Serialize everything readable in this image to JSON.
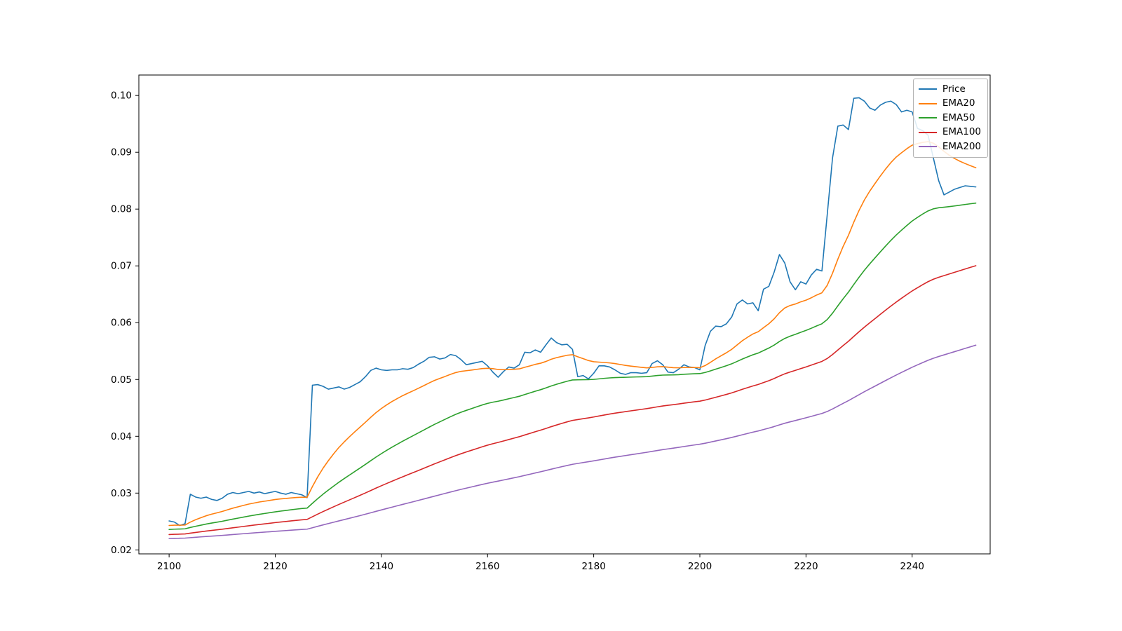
{
  "chart_data": {
    "type": "line",
    "title": "",
    "xlabel": "",
    "ylabel": "",
    "grid": false,
    "legend_position": "upper right",
    "x_start": 2100,
    "x_step": 1,
    "xlim": [
      2094.3,
      2254.7
    ],
    "ylim": [
      0.0193,
      0.1036
    ],
    "x_ticks": [
      2100,
      2120,
      2140,
      2160,
      2180,
      2200,
      2220,
      2240
    ],
    "x_tick_labels": [
      "2100",
      "2120",
      "2140",
      "2160",
      "2180",
      "2200",
      "2220",
      "2240"
    ],
    "y_ticks": [
      0.02,
      0.03,
      0.04,
      0.05,
      0.06,
      0.07,
      0.08,
      0.09,
      0.1
    ],
    "y_tick_labels": [
      "0.02",
      "0.03",
      "0.04",
      "0.05",
      "0.06",
      "0.07",
      "0.08",
      "0.09",
      "0.10"
    ],
    "series": [
      {
        "name": "Price",
        "color": "#1f77b4",
        "kind": "raw",
        "values": [
          0.0251,
          0.0249,
          0.0243,
          0.0246,
          0.0298,
          0.0293,
          0.0291,
          0.0293,
          0.0289,
          0.0287,
          0.0291,
          0.0298,
          0.0301,
          0.0299,
          0.0301,
          0.0303,
          0.03,
          0.0302,
          0.0299,
          0.0301,
          0.0303,
          0.03,
          0.0298,
          0.0301,
          0.0299,
          0.0297,
          0.0292,
          0.049,
          0.0491,
          0.0488,
          0.0483,
          0.0485,
          0.0487,
          0.0483,
          0.0486,
          0.0491,
          0.0496,
          0.0505,
          0.0516,
          0.052,
          0.0517,
          0.0516,
          0.0517,
          0.0517,
          0.0519,
          0.0518,
          0.0521,
          0.0527,
          0.0532,
          0.0539,
          0.054,
          0.0536,
          0.0538,
          0.0544,
          0.0542,
          0.0535,
          0.0526,
          0.0528,
          0.053,
          0.0532,
          0.0524,
          0.0513,
          0.0504,
          0.0514,
          0.0522,
          0.052,
          0.0526,
          0.0548,
          0.0547,
          0.0552,
          0.0548,
          0.0561,
          0.0573,
          0.0565,
          0.0561,
          0.0562,
          0.0553,
          0.0505,
          0.0507,
          0.0501,
          0.0511,
          0.0524,
          0.0524,
          0.0522,
          0.0517,
          0.0511,
          0.0509,
          0.0512,
          0.0512,
          0.0511,
          0.0512,
          0.0528,
          0.0533,
          0.0526,
          0.0513,
          0.0512,
          0.0518,
          0.0526,
          0.0522,
          0.0521,
          0.0517,
          0.056,
          0.0585,
          0.0594,
          0.0593,
          0.0598,
          0.061,
          0.0633,
          0.064,
          0.0633,
          0.0635,
          0.0621,
          0.0659,
          0.0664,
          0.0689,
          0.072,
          0.0705,
          0.0672,
          0.0658,
          0.0672,
          0.0668,
          0.0684,
          0.0694,
          0.0691,
          0.079,
          0.089,
          0.0946,
          0.0948,
          0.094,
          0.0995,
          0.0996,
          0.099,
          0.0978,
          0.0974,
          0.0983,
          0.0988,
          0.099,
          0.0984,
          0.0971,
          0.0974,
          0.0971,
          0.0942,
          0.0938,
          0.093,
          0.089,
          0.085,
          0.0825,
          0.083,
          0.0835,
          0.0838,
          0.0841,
          0.084,
          0.0839
        ]
      },
      {
        "name": "EMA20",
        "color": "#ff7f0e",
        "kind": "ema",
        "period": 20,
        "seed": 0.0243
      },
      {
        "name": "EMA50",
        "color": "#2ca02c",
        "kind": "ema",
        "period": 50,
        "seed": 0.0236
      },
      {
        "name": "EMA100",
        "color": "#d62728",
        "kind": "ema",
        "period": 100,
        "seed": 0.0227
      },
      {
        "name": "EMA200",
        "color": "#9467bd",
        "kind": "ema",
        "period": 200,
        "seed": 0.022
      }
    ]
  }
}
